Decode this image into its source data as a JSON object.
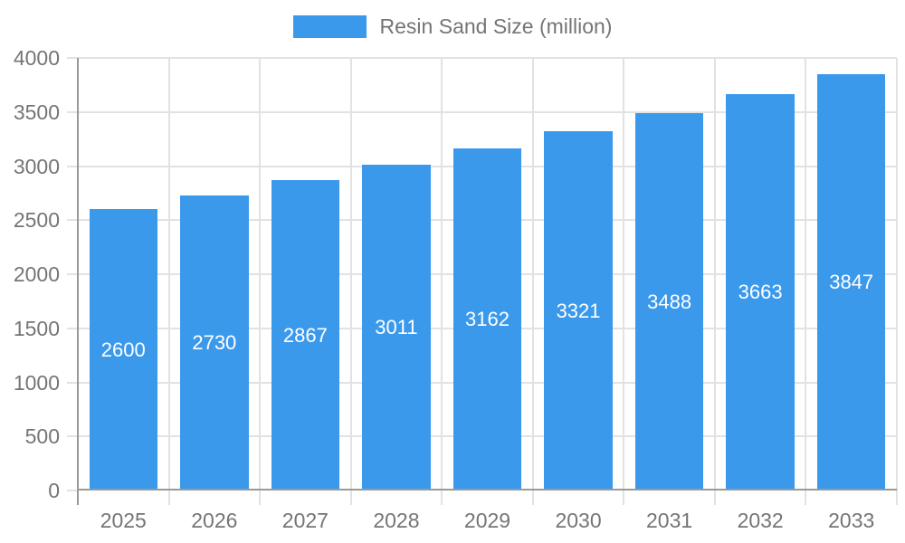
{
  "chart_data": {
    "type": "bar",
    "title": "Resin Sand Size (million)",
    "legend": [
      "Resin Sand Size (million)"
    ],
    "legend_position": "top-center",
    "categories": [
      "2025",
      "2026",
      "2027",
      "2028",
      "2029",
      "2030",
      "2031",
      "2032",
      "2033"
    ],
    "values": [
      2600,
      2730,
      2867,
      3011,
      3162,
      3321,
      3488,
      3663,
      3847
    ],
    "xlabel": "",
    "ylabel": "",
    "ylim": [
      0,
      4000
    ],
    "ytick_step": 500,
    "yticks": [
      0,
      500,
      1000,
      1500,
      2000,
      2500,
      3000,
      3500,
      4000
    ],
    "grid": "horizontal-and-vertical",
    "data_labels": "inside-center-white",
    "bar_band_fraction": 0.75,
    "colors": {
      "bar": "#3B99EC",
      "bar_label": "#FFFFFF",
      "axis_line": "#999999",
      "grid_line": "#E2E2E2",
      "tick_text": "#757575",
      "legend_text": "#757575",
      "background": "#FFFFFF"
    }
  }
}
